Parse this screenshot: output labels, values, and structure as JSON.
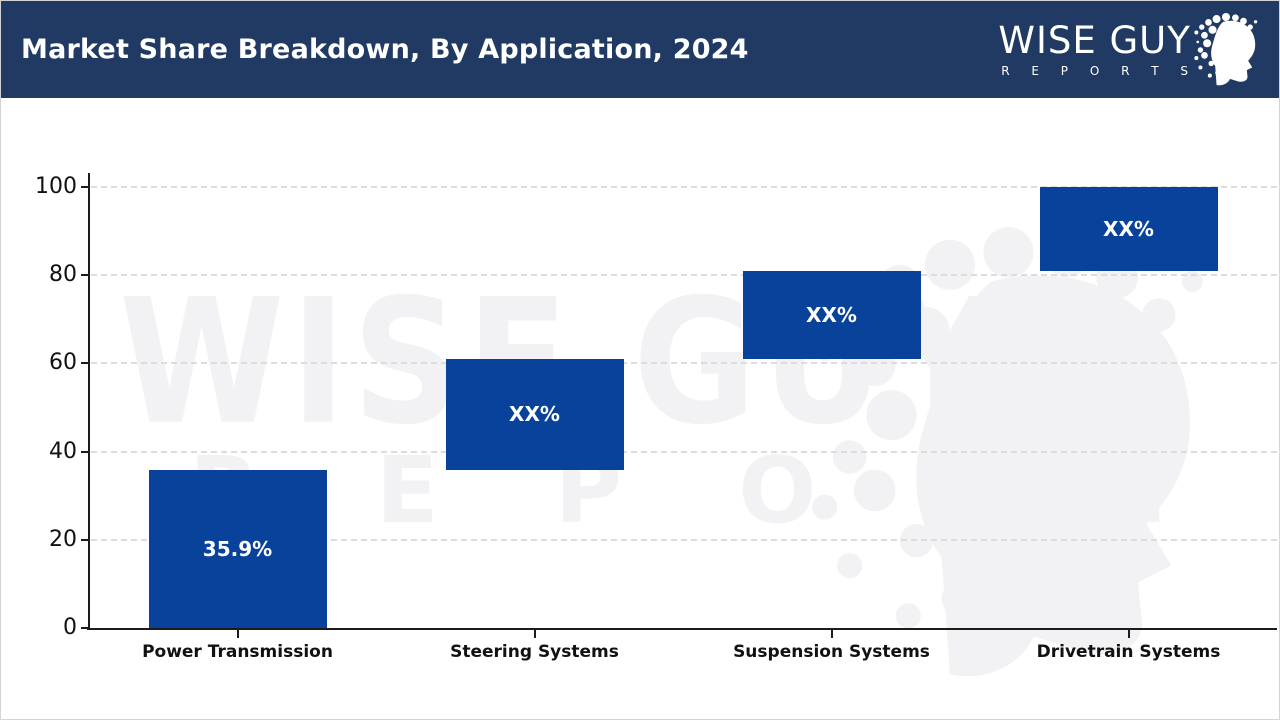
{
  "header": {
    "title": "Market Share Breakdown, By Application, 2024",
    "logo": {
      "wordmark": "WISE GUY",
      "subtext": "R E P O R T S"
    },
    "background_color": "#213a63"
  },
  "watermark": {
    "line1": "WISE GUY",
    "line2": "R E P O R T S"
  },
  "chart_data": {
    "type": "bar",
    "subtype": "waterfall",
    "title": "Market Share Breakdown, By Application, 2024",
    "categories": [
      "Power Transmission",
      "Steering Systems",
      "Suspension Systems",
      "Drivetrain Systems"
    ],
    "bars": [
      {
        "category": "Power Transmission",
        "start": 0,
        "end": 35.9,
        "label": "35.9%"
      },
      {
        "category": "Steering Systems",
        "start": 35.9,
        "end": 61,
        "label": "XX%"
      },
      {
        "category": "Suspension Systems",
        "start": 61,
        "end": 81,
        "label": "XX%"
      },
      {
        "category": "Drivetrain Systems",
        "start": 81,
        "end": 100,
        "label": "XX%"
      }
    ],
    "yticks": [
      0,
      20,
      40,
      60,
      80,
      100
    ],
    "ylim": [
      0,
      105
    ],
    "xlabel": "",
    "ylabel": "",
    "bar_color": "#08429a",
    "grid": "horizontal-dashed",
    "legend": "none"
  }
}
